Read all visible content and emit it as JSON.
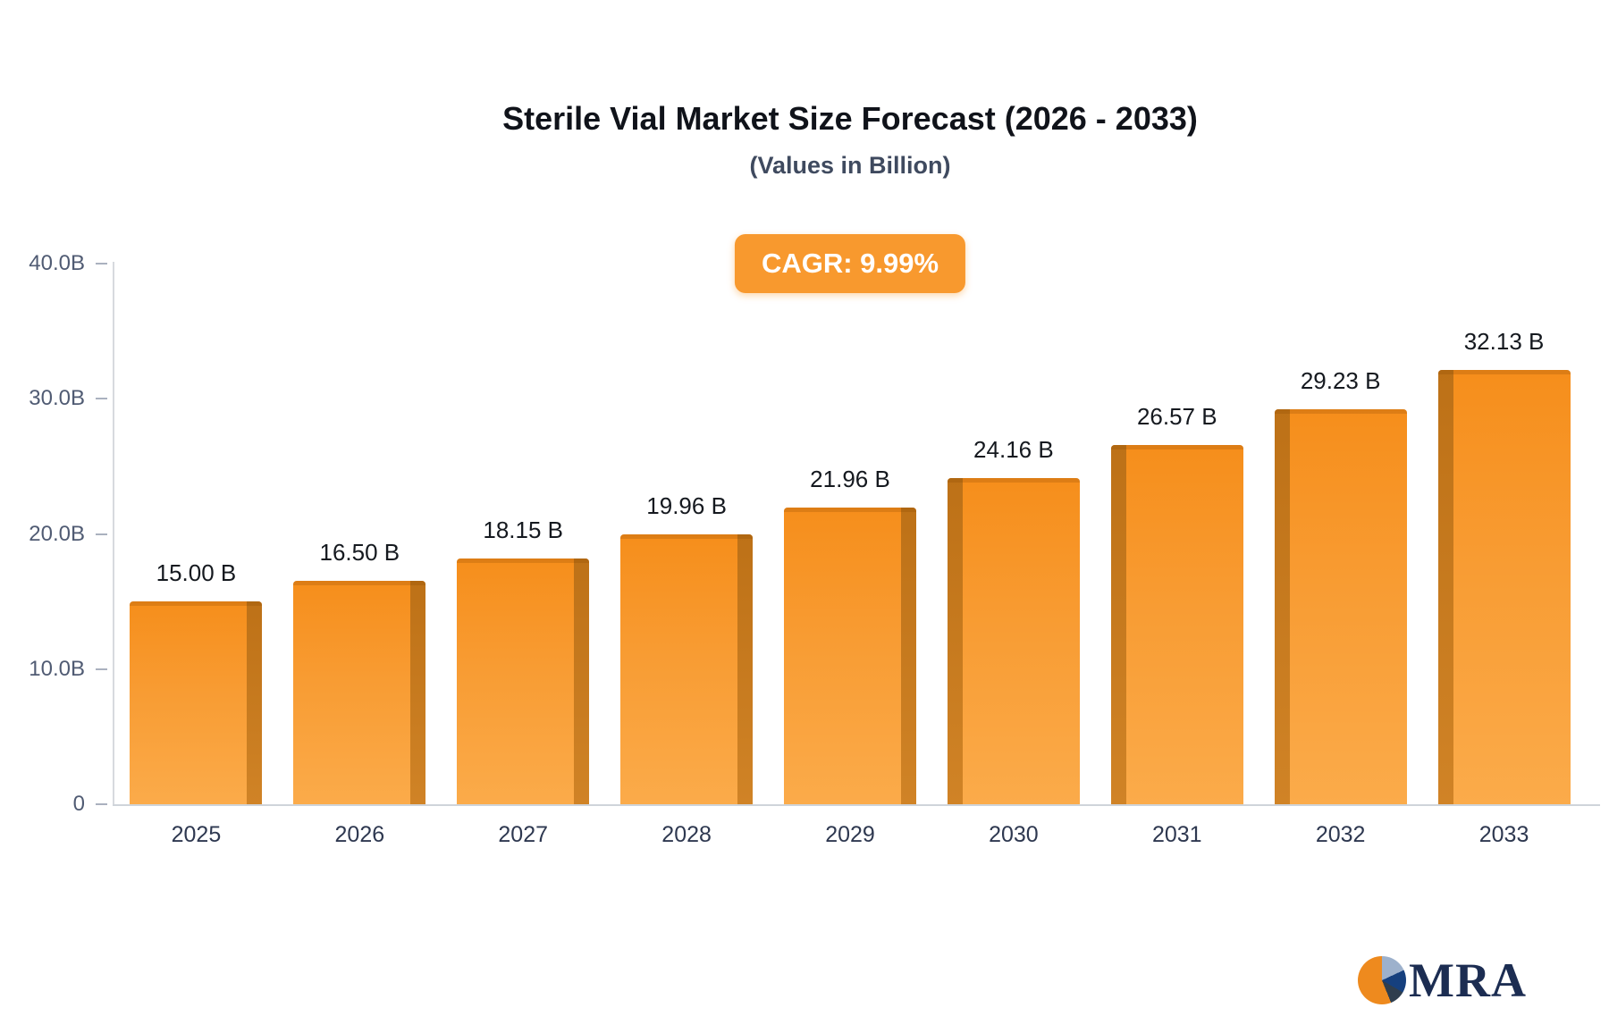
{
  "chart_data": {
    "type": "bar",
    "title": "Sterile Vial Market Size Forecast (2026 - 2033)",
    "subtitle": "(Values in Billion)",
    "badge": "CAGR: 9.99%",
    "categories": [
      "2025",
      "2026",
      "2027",
      "2028",
      "2029",
      "2030",
      "2031",
      "2032",
      "2033"
    ],
    "values": [
      15.0,
      16.5,
      18.15,
      19.96,
      21.96,
      24.16,
      26.57,
      29.23,
      32.13
    ],
    "value_labels": [
      "15.00 B",
      "16.50 B",
      "18.15 B",
      "19.96 B",
      "21.96 B",
      "24.16 B",
      "26.57 B",
      "29.23 B",
      "32.13 B"
    ],
    "xlabel": "",
    "ylabel": "",
    "ylim": [
      0,
      40
    ],
    "y_ticks": [
      {
        "label": "40.0B",
        "value": 40
      },
      {
        "label": "30.0B",
        "value": 30
      },
      {
        "label": "20.0B",
        "value": 20
      },
      {
        "label": "10.0B",
        "value": 10
      },
      {
        "label": "0",
        "value": 0
      }
    ],
    "grid": false,
    "legend": false,
    "colors": {
      "bar_top": "#f68e1b",
      "bar_bottom": "#fbab4a",
      "bar_side": "#bd7117",
      "badge_bg": "#f8992e",
      "badge_text": "#ffffff"
    }
  },
  "logo": {
    "text": "MRA"
  }
}
